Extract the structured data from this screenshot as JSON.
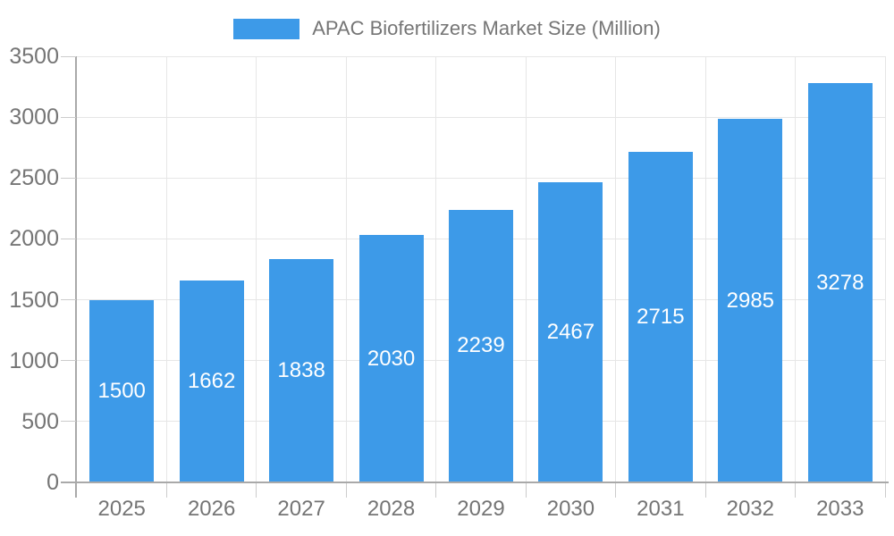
{
  "chart_data": {
    "type": "bar",
    "title": "APAC Biofertilizers Market Size (Million)",
    "legend": {
      "label": "APAC Biofertilizers Market Size (Million)",
      "position": "top"
    },
    "categories": [
      "2025",
      "2026",
      "2027",
      "2028",
      "2029",
      "2030",
      "2031",
      "2032",
      "2033"
    ],
    "values": [
      1500,
      1662,
      1838,
      2030,
      2239,
      2467,
      2715,
      2985,
      3278
    ],
    "xlabel": "",
    "ylabel": "",
    "ylim": [
      0,
      3500
    ],
    "y_ticks": [
      0,
      500,
      1000,
      1500,
      2000,
      2500,
      3000,
      3500
    ],
    "grid": true,
    "value_labels": "inside-center",
    "colors": {
      "bar": "#3D9AE8",
      "bar_label": "#FFFFFF",
      "axis_text": "#757575",
      "grid": "#E6E6E6",
      "tick": "#CCCCCC",
      "axis_line": "#A9A9A9",
      "background": "#FFFFFF"
    }
  }
}
